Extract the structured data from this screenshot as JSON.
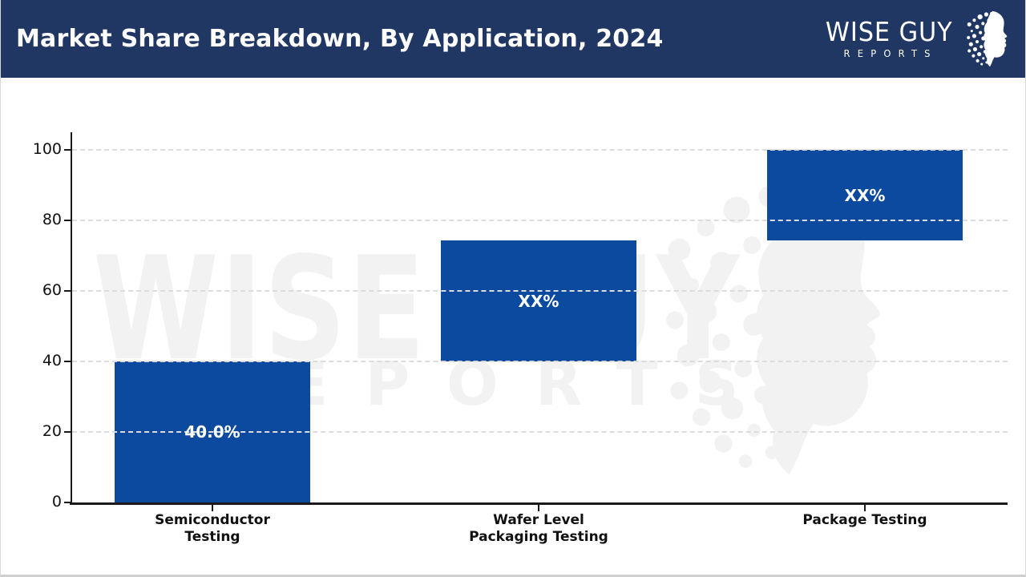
{
  "header": {
    "title": "Market Share Breakdown, By Application, 2024",
    "logo": {
      "wordmark": "WISE GUY",
      "subtext": "REPORTS"
    }
  },
  "watermark": {
    "wordmark": "WISE GUY",
    "subtext": "REPORTS"
  },
  "chart_data": {
    "type": "bar",
    "subtype": "waterfall-cumulative-percentage",
    "title": "Market Share Breakdown, By Application, 2024",
    "categories": [
      [
        "Semiconductor",
        "Testing"
      ],
      [
        "Wafer Level",
        "Packaging Testing"
      ],
      [
        "Package Testing"
      ]
    ],
    "bars": [
      {
        "category": "Semiconductor Testing",
        "from": 0,
        "to": 40,
        "label": "40.0%"
      },
      {
        "category": "Wafer Level Packaging Testing",
        "from": 40,
        "to": 74.3,
        "label": "XX%"
      },
      {
        "category": "Package Testing",
        "from": 74.3,
        "to": 100,
        "label": "XX%"
      }
    ],
    "xlabel": "",
    "ylabel": "",
    "ylim": [
      0,
      100
    ],
    "yticks": [
      0,
      20,
      40,
      60,
      80,
      100
    ],
    "grid": "horizontal-dashed",
    "grid_on_top_of_bars": true,
    "legend": "none",
    "colors": {
      "bar": "#0b4a9e",
      "bar_label": "#ffffff",
      "axis": "#1a1a1a",
      "gridline": "#dcdcdc",
      "header_bg": "#203764",
      "watermark": "#f2f2f2"
    }
  }
}
